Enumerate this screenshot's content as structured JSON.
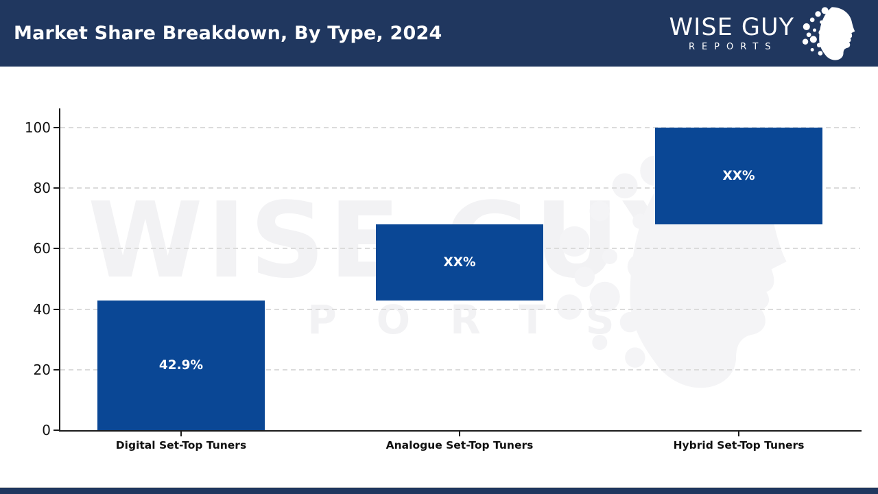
{
  "header": {
    "title": "Market Share Breakdown, By Type, 2024",
    "logo": {
      "name": "WISE GUY",
      "sub": "REPORTS"
    }
  },
  "watermark": {
    "name": "WISE GUY",
    "sub": "REPORTS"
  },
  "chart_data": {
    "type": "bar",
    "variant": "floating stacked percentage bars (segments cumulate to 100%)",
    "title": "Market Share Breakdown, By Type, 2024",
    "categories": [
      "Digital Set-Top Tuners",
      "Analogue Set-Top Tuners",
      "Hybrid Set-Top Tuners"
    ],
    "segments": [
      {
        "category": "Digital Set-Top Tuners",
        "from": 0,
        "to": 42.9,
        "label": "42.9%"
      },
      {
        "category": "Analogue Set-Top Tuners",
        "from": 42.9,
        "to": 68,
        "label": "XX%"
      },
      {
        "category": "Hybrid Set-Top Tuners",
        "from": 68,
        "to": 100,
        "label": "XX%"
      }
    ],
    "ylim": [
      0,
      100
    ],
    "yticks": [
      0,
      20,
      40,
      60,
      80,
      100
    ],
    "xlabel": "",
    "ylabel": "",
    "grid": "horizontal dashed",
    "legend": "none",
    "bar_color": "#0A4795"
  },
  "colors": {
    "header_bg": "#20375F",
    "bar": "#0A4795",
    "gridline": "#DBDBDB",
    "watermark": "#F2F2F4",
    "axis": "#1a1a1a"
  }
}
